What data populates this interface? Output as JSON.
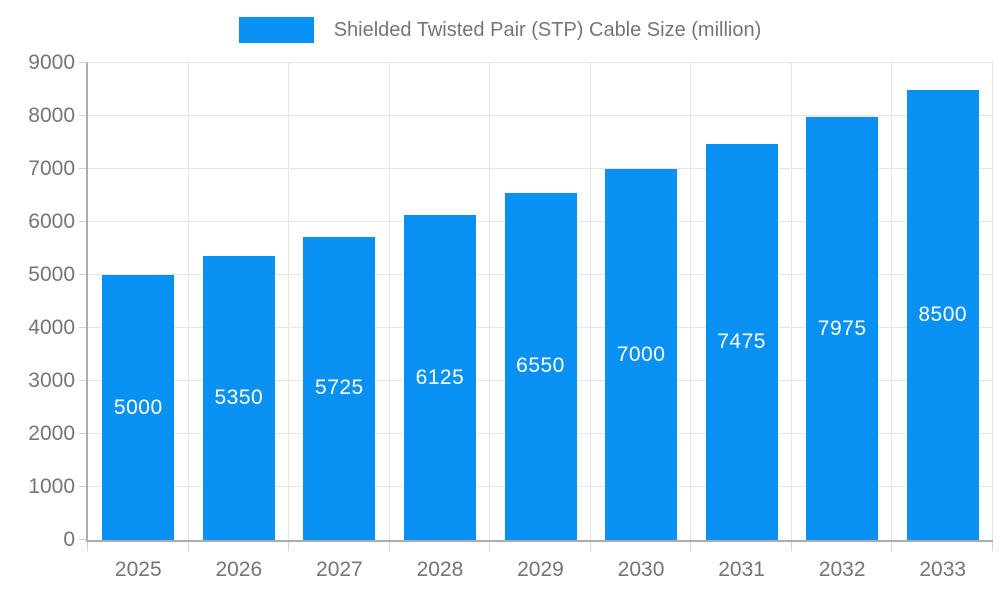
{
  "chart_data": {
    "type": "bar",
    "title": "Shielded Twisted Pair (STP) Cable Size (million)",
    "categories": [
      "2025",
      "2026",
      "2027",
      "2028",
      "2029",
      "2030",
      "2031",
      "2032",
      "2033"
    ],
    "values": [
      5000,
      5350,
      5725,
      6125,
      6550,
      7000,
      7475,
      7975,
      8500
    ],
    "xlabel": "",
    "ylabel": "",
    "ylim": [
      0,
      9000
    ],
    "ytick_step": 1000,
    "grid": true,
    "legend_position": "top",
    "bar_color": "#0890F2",
    "value_label_color": "#FFFFFF",
    "axis_text_color": "#757575",
    "gridline_color": "#E6E6E6",
    "axis_line_color": "#ACACAC",
    "tick_color": "#D2D2D2",
    "legend_text_color": "#757575"
  }
}
